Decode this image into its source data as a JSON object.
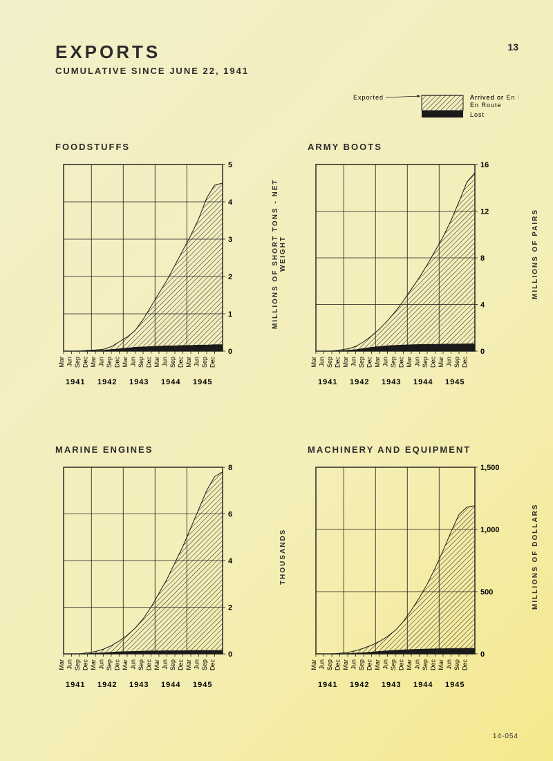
{
  "page_number": "13",
  "footer_code": "14-054",
  "title": "EXPORTS",
  "subtitle": "CUMULATIVE SINCE JUNE 22, 1941",
  "legend": {
    "exported": "Exported",
    "arrived": "Arrived or En Route",
    "lost": "Lost"
  },
  "x_tick_labels": [
    "Mar",
    "Jun",
    "Sep",
    "Dec",
    "Mar",
    "Jun",
    "Sep",
    "Dec",
    "Mar",
    "Jun",
    "Sep",
    "Dec",
    "Mar",
    "Jun",
    "Sep",
    "Dec",
    "Mar",
    "Jun",
    "Sep",
    "Dec"
  ],
  "x_year_labels": [
    "1941",
    "1942",
    "1943",
    "1944",
    "1945"
  ],
  "colors": {
    "ink": "#1a1a1a",
    "hatch_stroke": "#2b2b2b",
    "lost": "#1a1a1a",
    "paper": "#f3eec5"
  },
  "charts": [
    {
      "id": "foodstuffs",
      "title": "FOODSTUFFS",
      "y_label": "MILLIONS OF SHORT TONS - NET WEIGHT",
      "ymax": 5,
      "ytick_step": 1,
      "exported": [
        0,
        0,
        0,
        0.02,
        0.03,
        0.05,
        0.12,
        0.25,
        0.38,
        0.55,
        0.85,
        1.2,
        1.55,
        1.9,
        2.3,
        2.7,
        3.1,
        3.55,
        4.1,
        4.45,
        4.5
      ],
      "lost": [
        0,
        0,
        0,
        0.01,
        0.02,
        0.03,
        0.05,
        0.07,
        0.09,
        0.11,
        0.12,
        0.13,
        0.14,
        0.15,
        0.15,
        0.16,
        0.16,
        0.17,
        0.17,
        0.18,
        0.18
      ]
    },
    {
      "id": "armyboots",
      "title": "ARMY BOOTS",
      "y_label": "MILLIONS OF PAIRS",
      "ymax": 16,
      "ytick_step": 4,
      "exported": [
        0,
        0,
        0,
        0.1,
        0.2,
        0.4,
        0.8,
        1.3,
        1.9,
        2.6,
        3.4,
        4.3,
        5.3,
        6.3,
        7.4,
        8.6,
        9.8,
        11.2,
        12.8,
        14.5,
        15.3
      ],
      "lost": [
        0,
        0,
        0,
        0.05,
        0.1,
        0.15,
        0.25,
        0.35,
        0.42,
        0.48,
        0.52,
        0.55,
        0.57,
        0.59,
        0.6,
        0.61,
        0.62,
        0.63,
        0.64,
        0.65,
        0.66
      ]
    },
    {
      "id": "marineengines",
      "title": "MARINE ENGINES",
      "y_label": "THOUSANDS",
      "ymax": 8,
      "ytick_step": 2,
      "exported": [
        0,
        0,
        0,
        0.05,
        0.1,
        0.2,
        0.35,
        0.55,
        0.8,
        1.1,
        1.5,
        2.0,
        2.6,
        3.2,
        3.9,
        4.6,
        5.4,
        6.2,
        7.0,
        7.6,
        7.8
      ],
      "lost": [
        0,
        0,
        0,
        0.02,
        0.04,
        0.06,
        0.08,
        0.1,
        0.11,
        0.12,
        0.13,
        0.14,
        0.14,
        0.15,
        0.15,
        0.15,
        0.16,
        0.16,
        0.16,
        0.16,
        0.16
      ]
    },
    {
      "id": "machinery",
      "title": "MACHINERY AND EQUIPMENT",
      "y_label": "MILLIONS OF DOLLARS",
      "ymax": 1500,
      "ytick_step": 500,
      "exported": [
        0,
        0,
        0,
        5,
        12,
        25,
        45,
        70,
        100,
        140,
        190,
        260,
        350,
        450,
        560,
        690,
        830,
        980,
        1120,
        1180,
        1190
      ],
      "lost": [
        0,
        0,
        0,
        2,
        5,
        8,
        12,
        17,
        22,
        27,
        31,
        34,
        37,
        39,
        41,
        43,
        44,
        45,
        46,
        47,
        47
      ]
    }
  ]
}
